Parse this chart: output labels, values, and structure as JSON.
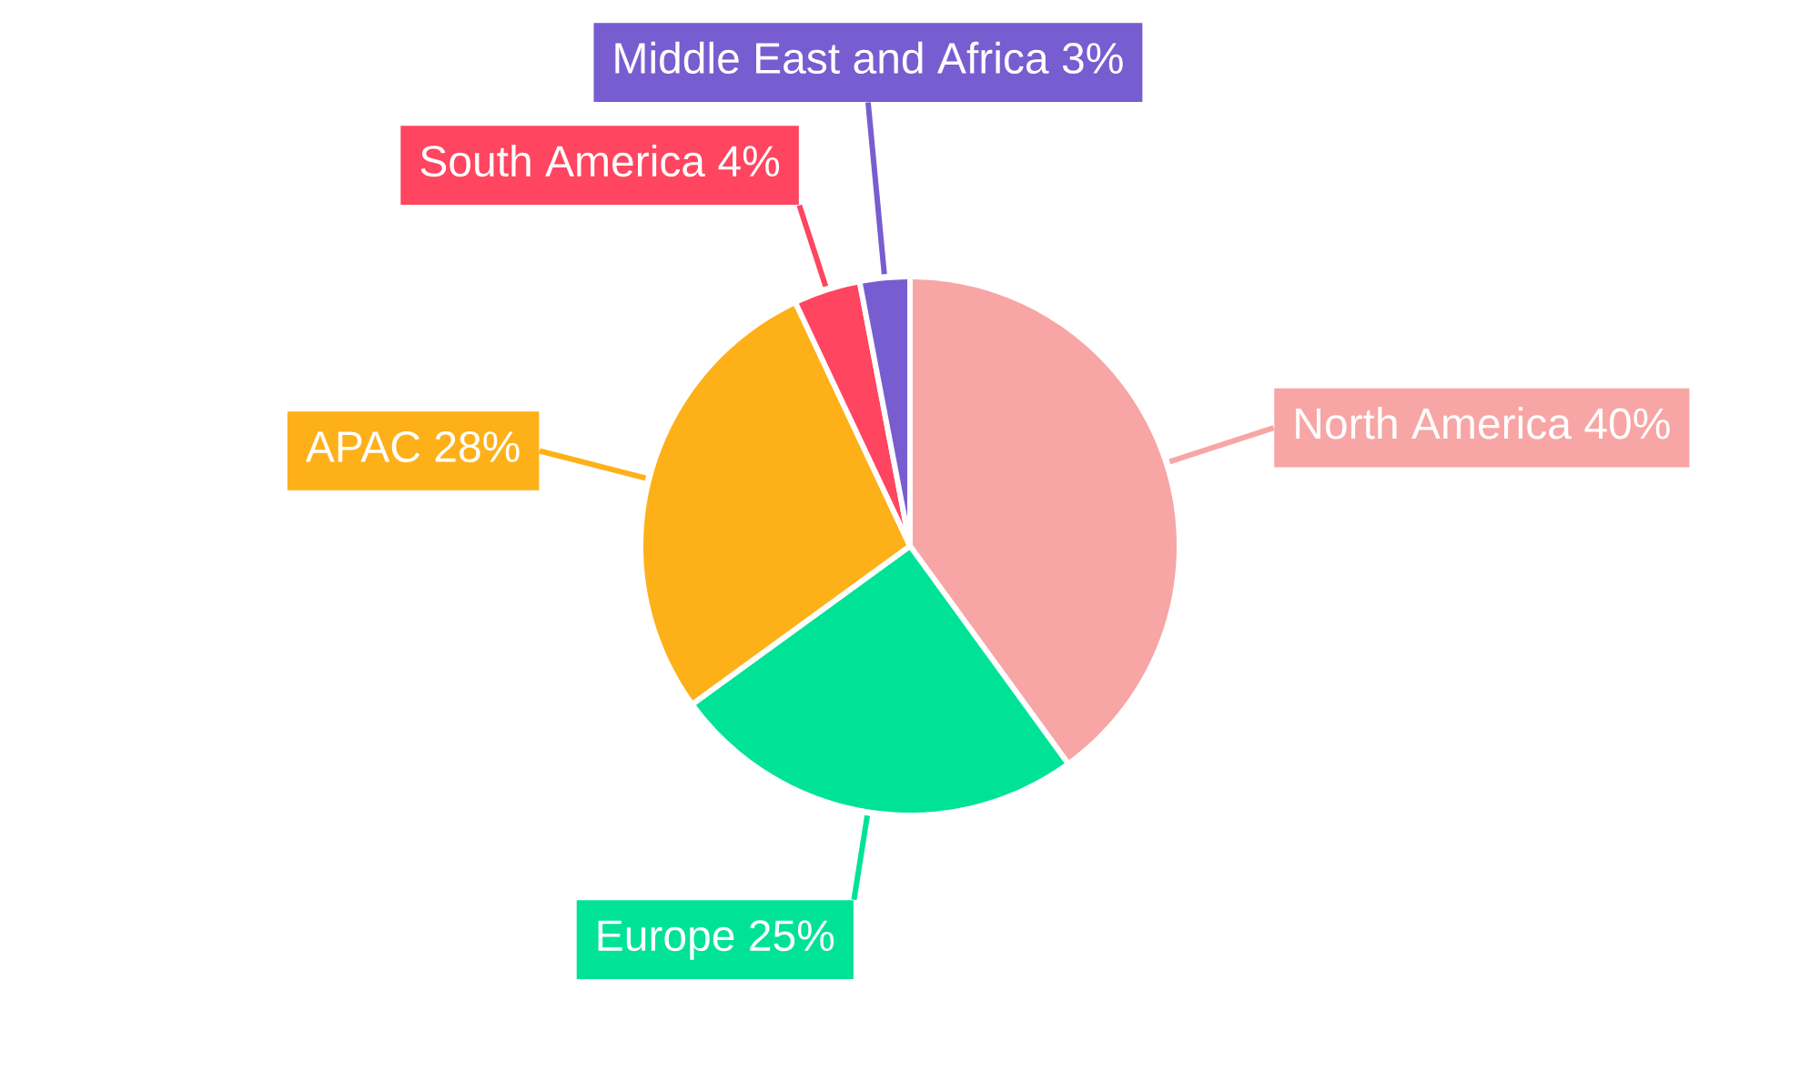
{
  "chart_data": {
    "type": "pie",
    "categories": [
      "North America",
      "Europe",
      "APAC",
      "South America",
      "Middle East and Africa"
    ],
    "values": [
      40,
      25,
      28,
      4,
      3
    ],
    "colors": [
      "#f8a5a5",
      "#00e396",
      "#feb019",
      "#ff4560",
      "#775dd0"
    ],
    "value_labels": [
      "40%",
      "25%",
      "28%",
      "4%",
      "3%"
    ]
  }
}
